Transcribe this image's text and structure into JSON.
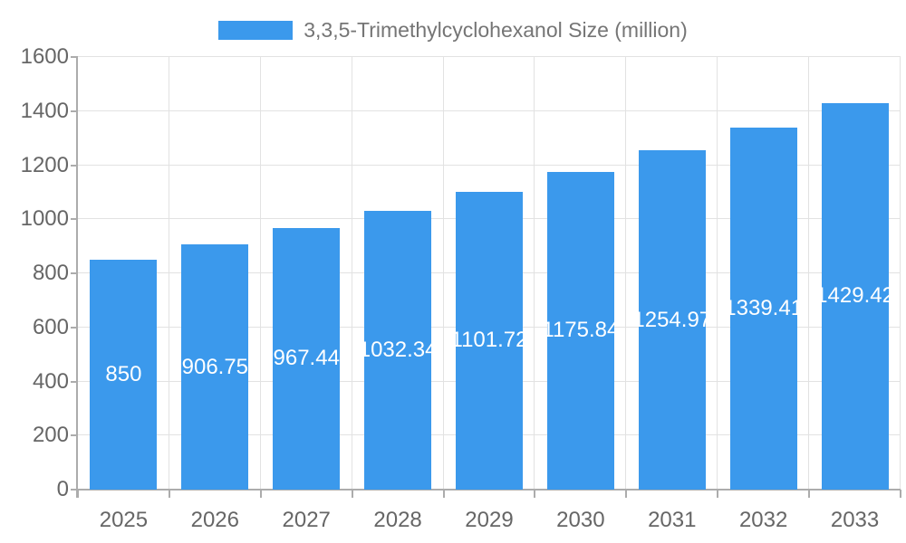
{
  "legend": {
    "series_label": "3,3,5-Trimethylcyclohexanol Size (million)"
  },
  "chart_data": {
    "type": "bar",
    "title": "3,3,5-Trimethylcyclohexanol Size (million)",
    "categories": [
      "2025",
      "2026",
      "2027",
      "2028",
      "2029",
      "2030",
      "2031",
      "2032",
      "2033"
    ],
    "values": [
      850,
      906.75,
      967.44,
      1032.34,
      1101.72,
      1175.84,
      1254.97,
      1339.41,
      1429.42
    ],
    "bar_labels": [
      "850",
      "906.75",
      "967.44",
      "1032.34",
      "1101.72",
      "1175.84",
      "1254.97",
      "1339.41",
      "1429.42"
    ],
    "xlabel": "",
    "ylabel": "",
    "ylim": [
      0,
      1600
    ],
    "y_ticks": [
      "0",
      "200",
      "400",
      "600",
      "800",
      "1000",
      "1200",
      "1400",
      "1600"
    ],
    "grid": true,
    "legend_position": "top",
    "colors": {
      "bar": "#3B99EC",
      "bar_label": "#FFFFFF",
      "axis_text": "#666666",
      "legend_text": "#757575",
      "grid_line": "#E2E2E2",
      "axis_line": "#ACACAC",
      "background": "#FFFFFF"
    }
  }
}
